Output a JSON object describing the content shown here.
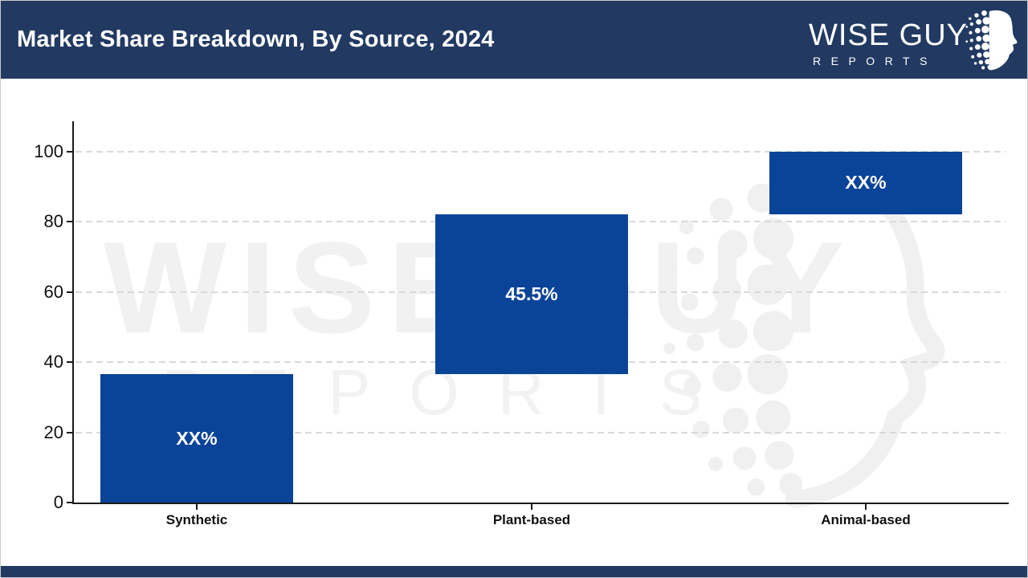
{
  "header": {
    "title": "Market Share Breakdown, By Source, 2024",
    "logo": {
      "line1": "WISE GUY",
      "line2": "REPORTS",
      "icon": "dotted-head-profile-icon"
    }
  },
  "watermark": {
    "line1": "WISE GUY",
    "line2": "REPORTS",
    "icon": "dotted-head-profile-icon"
  },
  "chart_data": {
    "type": "bar",
    "variant": "waterfall",
    "title": "Market Share Breakdown, By Source, 2024",
    "categories": [
      "Synthetic",
      "Plant-based",
      "Animal-based"
    ],
    "bars": [
      {
        "category": "Synthetic",
        "start": 0,
        "end": 36.5,
        "value_label": "XX%"
      },
      {
        "category": "Plant-based",
        "start": 36.5,
        "end": 82,
        "value_label": "45.5%"
      },
      {
        "category": "Animal-based",
        "start": 82,
        "end": 100,
        "value_label": "XX%"
      }
    ],
    "yticks": [
      0,
      20,
      40,
      60,
      80,
      100
    ],
    "ylim": [
      0,
      108
    ],
    "xlabel": "",
    "ylabel": "",
    "grid": "horizontal-dashed",
    "legend": "none"
  },
  "colors": {
    "header_navy": "#223a62",
    "bar_blue": "#0a4499",
    "bar_label_white": "#ffffff",
    "gridline_gray": "#d9d9d9",
    "watermark_gray": "#f1f1f1",
    "axis_black": "#1a1a1a"
  }
}
